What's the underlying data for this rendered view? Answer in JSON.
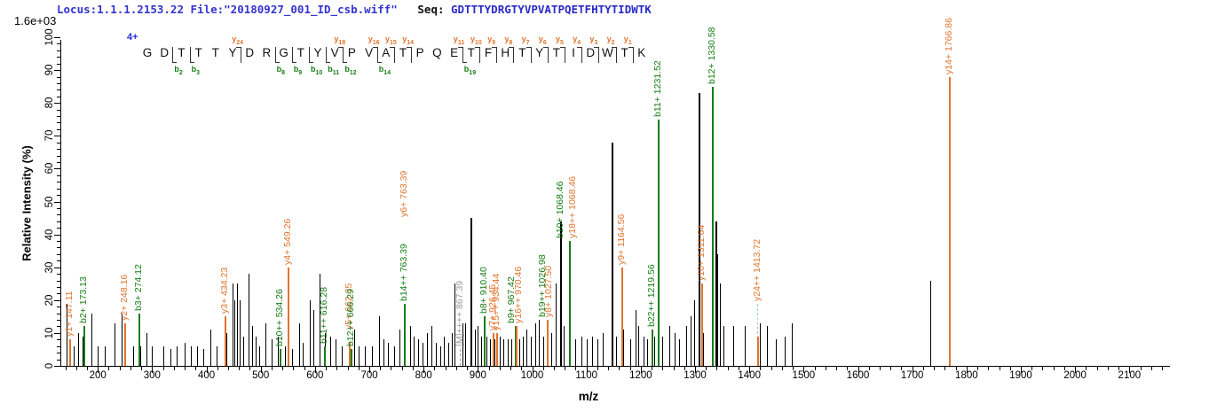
{
  "header": {
    "locus_file": "Locus:1.1.1.2153.22 File:\"20180927_001_ID_csb.wiff\"",
    "seq_label": "Seq: ",
    "sequence": "GDTTTYDRGTYVPVATPQETFHTYTIDWTK",
    "max_intensity": "1.6e+03"
  },
  "colors": {
    "y_ion": "#e0742e",
    "b_ion": "#157d15",
    "precursor": "#9b9b9b",
    "precursor_dash": "#aaaaaa",
    "expected_dash": "#9fc5e0",
    "header_blue": "#3434d0",
    "peak_black": "#000000"
  },
  "chart_data": {
    "type": "bar",
    "subtype": "mass-spectrum",
    "title": "Locus:1.1.1.2153.22 File:\"20180927_001_ID_csb.wiff\"  Seq: GDTTTYDRGTYVPVATPQETFHTYTIDWTK",
    "xlabel": "m/z",
    "ylabel": "Relative  Intensity (%)",
    "x_range": [
      131,
      2173
    ],
    "y_range": [
      0,
      100
    ],
    "x_major_ticks": [
      200,
      300,
      400,
      500,
      600,
      700,
      800,
      900,
      1000,
      1100,
      1200,
      1300,
      1400,
      1500,
      1600,
      1700,
      1800,
      1900,
      2000,
      2100
    ],
    "x_minor_step": 20,
    "y_major_ticks": [
      0,
      10,
      20,
      30,
      40,
      50,
      60,
      70,
      80,
      90,
      100
    ],
    "y_minor_step": 2,
    "grid": false,
    "sequence_annotation": {
      "charge": "4+",
      "residues": [
        "G",
        "D",
        "T",
        "T",
        "T",
        "Y",
        "D",
        "R",
        "G",
        "T",
        "Y",
        "V",
        "P",
        "V",
        "A",
        "T",
        "P",
        "Q",
        "E",
        "T",
        "F",
        "H",
        "T",
        "Y",
        "T",
        "I",
        "D",
        "W",
        "T",
        "K"
      ],
      "cuts": [
        {
          "after": 2,
          "b": "2"
        },
        {
          "after": 3,
          "b": "3"
        },
        {
          "after": 6,
          "y": "24"
        },
        {
          "after": 8,
          "b": "8"
        },
        {
          "after": 9,
          "b": "9"
        },
        {
          "after": 10,
          "b": "10"
        },
        {
          "after": 11,
          "b": "11"
        },
        {
          "after": 12,
          "b": "12",
          "y": "18"
        },
        {
          "after": 14,
          "b": "14",
          "y": "16"
        },
        {
          "after": 15,
          "y": "15"
        },
        {
          "after": 16,
          "y": "14"
        },
        {
          "after": 19,
          "b": "19",
          "y": "11"
        },
        {
          "after": 20,
          "y": "10"
        },
        {
          "after": 21,
          "y": "9"
        },
        {
          "after": 22,
          "y": "8"
        },
        {
          "after": 23,
          "y": "7"
        },
        {
          "after": 24,
          "y": "6"
        },
        {
          "after": 25,
          "y": "5"
        },
        {
          "after": 26,
          "y": "4"
        },
        {
          "after": 27,
          "y": "3"
        },
        {
          "after": 28,
          "y": "2"
        },
        {
          "after": 29,
          "y": "1"
        }
      ]
    },
    "labeled_peaks": [
      {
        "label": "y1+ 147.11",
        "mz": 147.11,
        "intensity": 8,
        "type": "y"
      },
      {
        "label": "b2+ 173.13",
        "mz": 173.13,
        "intensity": 12,
        "type": "b"
      },
      {
        "label": "y2+ 248.16",
        "mz": 248.16,
        "intensity": 13,
        "type": "y"
      },
      {
        "label": "b3+ 274.12",
        "mz": 274.12,
        "intensity": 16,
        "type": "b"
      },
      {
        "label": "y3+ 434.23",
        "mz": 434.23,
        "intensity": 15,
        "type": "y"
      },
      {
        "label": "b10++ 534.26",
        "mz": 534.26,
        "intensity": 5,
        "type": "b"
      },
      {
        "label": "y4+ 549.26",
        "mz": 549.26,
        "intensity": 30,
        "type": "y"
      },
      {
        "label": "b11++ 616.28",
        "mz": 616.28,
        "intensity": 6,
        "type": "b"
      },
      {
        "label": "y5+ 662.35",
        "mz": 662.35,
        "intensity": 7,
        "type": "y",
        "lift": 12
      },
      {
        "label": "b12++ 666.29",
        "mz": 666.29,
        "intensity": 5,
        "type": "b"
      },
      {
        "label": "b14++ 763.39",
        "mz": 763.39,
        "intensity": 19,
        "type": "b"
      },
      {
        "label": "y6+ 763.39",
        "mz": 763.39,
        "intensity": 19,
        "type": "y",
        "lift": 95,
        "no_peak": true
      },
      {
        "label": "[M]++++ 867.39",
        "mz": 867.39,
        "intensity": 0,
        "type": "M",
        "dash_intensity": 5
      },
      {
        "label": "b8+ 910.40",
        "mz": 910.4,
        "intensity": 15,
        "type": "b"
      },
      {
        "label": "y7+ 926.45",
        "mz": 926.45,
        "intensity": 10,
        "type": "y"
      },
      {
        "label": "y15++ 934.44",
        "mz": 934.44,
        "intensity": 10,
        "type": "y"
      },
      {
        "label": "b9+ 967.42",
        "mz": 967.42,
        "intensity": 12,
        "type": "b",
        "dx": -4
      },
      {
        "label": "y16++ 970.46",
        "mz": 970.46,
        "intensity": 12,
        "type": "y",
        "dx": 3
      },
      {
        "label": "b19++ 1026.98",
        "mz": 1026.98,
        "intensity": 14,
        "type": "b",
        "dx": -5
      },
      {
        "label": "y8+ 1027.50",
        "mz": 1027.5,
        "intensity": 14,
        "type": "y",
        "dx": 2
      },
      {
        "label": "b10+ 1068.46",
        "mz": 1068.46,
        "intensity": 38,
        "type": "b",
        "dx": -10
      },
      {
        "label": "y18++ 1068.46",
        "mz": 1068.46,
        "intensity": 38,
        "type": "y",
        "dx": 4,
        "no_peak": true
      },
      {
        "label": "y9+ 1164.56",
        "mz": 1164.56,
        "intensity": 30,
        "type": "y"
      },
      {
        "label": "b22++ 1219.56",
        "mz": 1219.56,
        "intensity": 11,
        "type": "b"
      },
      {
        "label": "b11+ 1231.52",
        "mz": 1231.52,
        "intensity": 75,
        "type": "b"
      },
      {
        "label": "y10+ 1311.64",
        "mz": 1311.64,
        "intensity": 25,
        "type": "y"
      },
      {
        "label": "b12+ 1330.58",
        "mz": 1330.58,
        "intensity": 85,
        "type": "b"
      },
      {
        "label": "y24++ 1413.72",
        "mz": 1413.72,
        "intensity": 9,
        "type": "y",
        "dash_intensity": 19
      },
      {
        "label": "y14+ 1766.86",
        "mz": 1766.86,
        "intensity": 88,
        "type": "y"
      }
    ],
    "unlabeled_peaks": [
      [
        142,
        19
      ],
      [
        156,
        6
      ],
      [
        164,
        10
      ],
      [
        172,
        9
      ],
      [
        188,
        16
      ],
      [
        199,
        6
      ],
      [
        212,
        6
      ],
      [
        230,
        13
      ],
      [
        243,
        16
      ],
      [
        265,
        6
      ],
      [
        278,
        6
      ],
      [
        290,
        10
      ],
      [
        300,
        6
      ],
      [
        320,
        6
      ],
      [
        333,
        5
      ],
      [
        345,
        6
      ],
      [
        360,
        7
      ],
      [
        372,
        6
      ],
      [
        383,
        6
      ],
      [
        395,
        5
      ],
      [
        408,
        11
      ],
      [
        418,
        6
      ],
      [
        437,
        10
      ],
      [
        448,
        25
      ],
      [
        452,
        20
      ],
      [
        456,
        25
      ],
      [
        462,
        20
      ],
      [
        468,
        9
      ],
      [
        478,
        28
      ],
      [
        484,
        12
      ],
      [
        490,
        9
      ],
      [
        498,
        6
      ],
      [
        508,
        13
      ],
      [
        520,
        8
      ],
      [
        532,
        9
      ],
      [
        545,
        6
      ],
      [
        558,
        5
      ],
      [
        570,
        13
      ],
      [
        578,
        7
      ],
      [
        590,
        20
      ],
      [
        597,
        17
      ],
      [
        608,
        28
      ],
      [
        618,
        10
      ],
      [
        628,
        9
      ],
      [
        638,
        8
      ],
      [
        650,
        6
      ],
      [
        672,
        11
      ],
      [
        680,
        6
      ],
      [
        692,
        6
      ],
      [
        705,
        6
      ],
      [
        718,
        15
      ],
      [
        726,
        8
      ],
      [
        734,
        7
      ],
      [
        745,
        6
      ],
      [
        755,
        11
      ],
      [
        765,
        6
      ],
      [
        775,
        12
      ],
      [
        782,
        9
      ],
      [
        790,
        8
      ],
      [
        798,
        7
      ],
      [
        806,
        10
      ],
      [
        814,
        12
      ],
      [
        822,
        7
      ],
      [
        830,
        6
      ],
      [
        838,
        9
      ],
      [
        845,
        7
      ],
      [
        852,
        10
      ],
      [
        857,
        25
      ],
      [
        871,
        13
      ],
      [
        876,
        13
      ],
      [
        887,
        45
      ],
      [
        895,
        11
      ],
      [
        899,
        12
      ],
      [
        906,
        9
      ],
      [
        916,
        9
      ],
      [
        922,
        8
      ],
      [
        930,
        8
      ],
      [
        940,
        9
      ],
      [
        947,
        8
      ],
      [
        955,
        8
      ],
      [
        962,
        8
      ],
      [
        976,
        8
      ],
      [
        983,
        9
      ],
      [
        990,
        11
      ],
      [
        997,
        9
      ],
      [
        1005,
        13
      ],
      [
        1012,
        14
      ],
      [
        1020,
        9
      ],
      [
        1035,
        10
      ],
      [
        1043,
        25
      ],
      [
        1051,
        44
      ],
      [
        1058,
        12
      ],
      [
        1080,
        8
      ],
      [
        1090,
        9
      ],
      [
        1100,
        8
      ],
      [
        1110,
        9
      ],
      [
        1120,
        8
      ],
      [
        1130,
        10
      ],
      [
        1146,
        68
      ],
      [
        1155,
        9
      ],
      [
        1168,
        11
      ],
      [
        1180,
        8
      ],
      [
        1190,
        17
      ],
      [
        1196,
        12
      ],
      [
        1205,
        9
      ],
      [
        1212,
        8
      ],
      [
        1225,
        9
      ],
      [
        1240,
        9
      ],
      [
        1252,
        12
      ],
      [
        1262,
        10
      ],
      [
        1270,
        8
      ],
      [
        1283,
        12
      ],
      [
        1291,
        15
      ],
      [
        1299,
        20
      ],
      [
        1306,
        83
      ],
      [
        1315,
        10
      ],
      [
        1337,
        44
      ],
      [
        1341,
        34
      ],
      [
        1346,
        25
      ],
      [
        1352,
        12
      ],
      [
        1371,
        12
      ],
      [
        1392,
        12
      ],
      [
        1420,
        13
      ],
      [
        1433,
        12
      ],
      [
        1448,
        8
      ],
      [
        1465,
        9
      ],
      [
        1478,
        13
      ],
      [
        1733,
        26
      ]
    ]
  }
}
